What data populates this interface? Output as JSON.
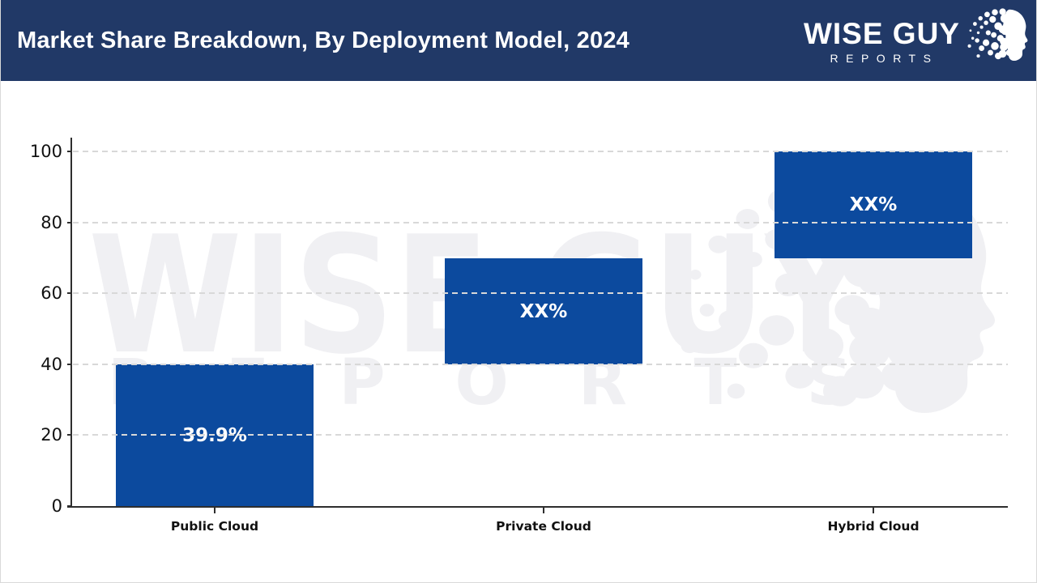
{
  "header": {
    "title": "Market Share Breakdown, By Deployment Model, 2024",
    "logo": {
      "name": "WISE GUY",
      "subtitle": "REPORTS"
    }
  },
  "watermark": {
    "name": "WISE GUY",
    "subtitle": "REPORTS"
  },
  "chart_data": {
    "type": "bar",
    "subtype": "floating_segment_bars",
    "title": "Market Share Breakdown, By Deployment Model, 2024",
    "categories": [
      "Public Cloud",
      "Private Cloud",
      "Hybrid Cloud"
    ],
    "segments": [
      {
        "category": "Public Cloud",
        "from": 0,
        "to": 39.9,
        "label": "39.9%"
      },
      {
        "category": "Private Cloud",
        "from": 39.9,
        "to": 69.9,
        "label": "XX%"
      },
      {
        "category": "Hybrid Cloud",
        "from": 69.9,
        "to": 100,
        "label": "XX%"
      }
    ],
    "xlabel": "",
    "ylabel": "",
    "ylim": [
      0,
      100
    ],
    "yticks": [
      0,
      20,
      40,
      60,
      80,
      100
    ],
    "grid": "horizontal-dashed",
    "legend": "none",
    "bar_color": "#0c4a9e",
    "value_label_color": "#ffffff"
  },
  "colors": {
    "header_bg": "#213967",
    "bar": "#0c4a9e",
    "grid": "#d8d8d8",
    "axis": "#2e2e2e",
    "text": "#111111",
    "watermark": "#f0f0f3"
  }
}
